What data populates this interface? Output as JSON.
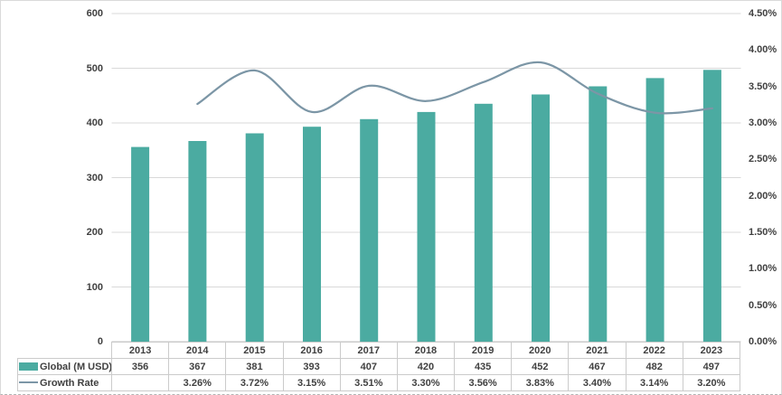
{
  "chart_data": {
    "type": "combo",
    "title": "",
    "categories": [
      "2013",
      "2014",
      "2015",
      "2016",
      "2017",
      "2018",
      "2019",
      "2020",
      "2021",
      "2022",
      "2023"
    ],
    "series": [
      {
        "name": "Global (M USD)",
        "type": "bar",
        "axis": "left",
        "color": "#4b(placeholder)",
        "values": [
          356,
          367,
          381,
          393,
          407,
          420,
          435,
          452,
          467,
          482,
          497
        ]
      },
      {
        "name": "Growth Rate",
        "type": "line",
        "axis": "right",
        "smooth": true,
        "color": "#7c96a6",
        "values": [
          null,
          3.26,
          3.72,
          3.15,
          3.51,
          3.3,
          3.56,
          3.83,
          3.4,
          3.14,
          3.2
        ]
      }
    ],
    "left_axis": {
      "min": 0,
      "max": 600,
      "step": 100,
      "tick_labels": [
        "600",
        "500",
        "400",
        "300",
        "200",
        "100",
        "0"
      ]
    },
    "right_axis": {
      "min": 0,
      "max": 4.5,
      "step": 0.5,
      "tick_labels": [
        "4.50%",
        "4.00%",
        "3.50%",
        "3.00%",
        "2.50%",
        "2.00%",
        "1.50%",
        "1.00%",
        "0.50%",
        "0.00%"
      ]
    },
    "grid": true,
    "legend_position": "table-left"
  },
  "table": {
    "header_years": [
      "2013",
      "2014",
      "2015",
      "2016",
      "2017",
      "2018",
      "2019",
      "2020",
      "2021",
      "2022",
      "2023"
    ],
    "rows": [
      {
        "label": "Global (M USD)",
        "swatch": "bar-swatch",
        "cells": [
          "356",
          "367",
          "381",
          "393",
          "407",
          "420",
          "435",
          "452",
          "467",
          "482",
          "497"
        ]
      },
      {
        "label": "Growth Rate",
        "swatch": "line-swatch",
        "cells": [
          "",
          "3.26%",
          "3.72%",
          "3.15%",
          "3.51%",
          "3.30%",
          "3.56%",
          "3.83%",
          "3.40%",
          "3.14%",
          "3.20%"
        ]
      }
    ]
  },
  "colors": {
    "bar": "#4baba1",
    "line": "#7c96a6",
    "text": "#404040",
    "gridline": "#d9d9d9",
    "axis_line": "#c6c6c6",
    "table_border": "#cbcbcb",
    "frame_border": "#dadada",
    "background": "#ffffff"
  }
}
